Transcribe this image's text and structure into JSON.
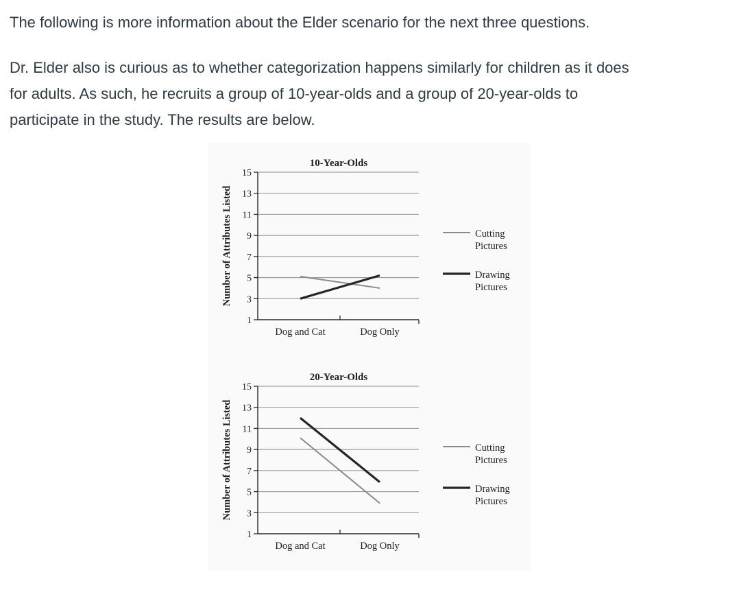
{
  "page": {
    "intro": {
      "line1": "The following is more information about the Elder scenario for the next three questions.",
      "paragraph": [
        "Dr. Elder also is curious as to whether categorization happens similarly for children as it does",
        "for adults. As such, he recruits a group of 10-year-olds and a group of 20-year-olds to",
        "participate in the study. The results are below."
      ]
    }
  },
  "colors": {
    "body_text": "#2d3b45",
    "panel_bg": "#fafafa",
    "chart_text": "#1f1f1f",
    "gridline": "#8c8c8c",
    "axis": "#2b2b2b",
    "cutting_line": "#8a8a8a",
    "drawing_line": "#262626"
  },
  "chart_data": [
    {
      "type": "line",
      "title": "10-Year-Olds",
      "ylabel": "Number of Attributes Listed",
      "xlabel": "",
      "categories": [
        "Dog and Cat",
        "Dog Only"
      ],
      "yticks": [
        1,
        3,
        5,
        7,
        9,
        11,
        13,
        15
      ],
      "ylim": [
        1,
        15
      ],
      "grid": true,
      "legend_position": "right",
      "series": [
        {
          "name": "Cutting Pictures",
          "values": [
            5.1,
            4.0
          ],
          "color": "#8a8a8a",
          "thickness": "thin"
        },
        {
          "name": "Drawing Pictures",
          "values": [
            3.0,
            5.2
          ],
          "color": "#262626",
          "thickness": "thick"
        }
      ]
    },
    {
      "type": "line",
      "title": "20-Year-Olds",
      "ylabel": "Number of Attributes Listed",
      "xlabel": "",
      "categories": [
        "Dog and Cat",
        "Dog Only"
      ],
      "yticks": [
        1,
        3,
        5,
        7,
        9,
        11,
        13,
        15
      ],
      "ylim": [
        1,
        15
      ],
      "grid": true,
      "legend_position": "right",
      "series": [
        {
          "name": "Cutting Pictures",
          "values": [
            10.1,
            3.9
          ],
          "color": "#8a8a8a",
          "thickness": "thin"
        },
        {
          "name": "Drawing Pictures",
          "values": [
            12.0,
            5.9
          ],
          "color": "#262626",
          "thickness": "thick"
        }
      ]
    }
  ]
}
